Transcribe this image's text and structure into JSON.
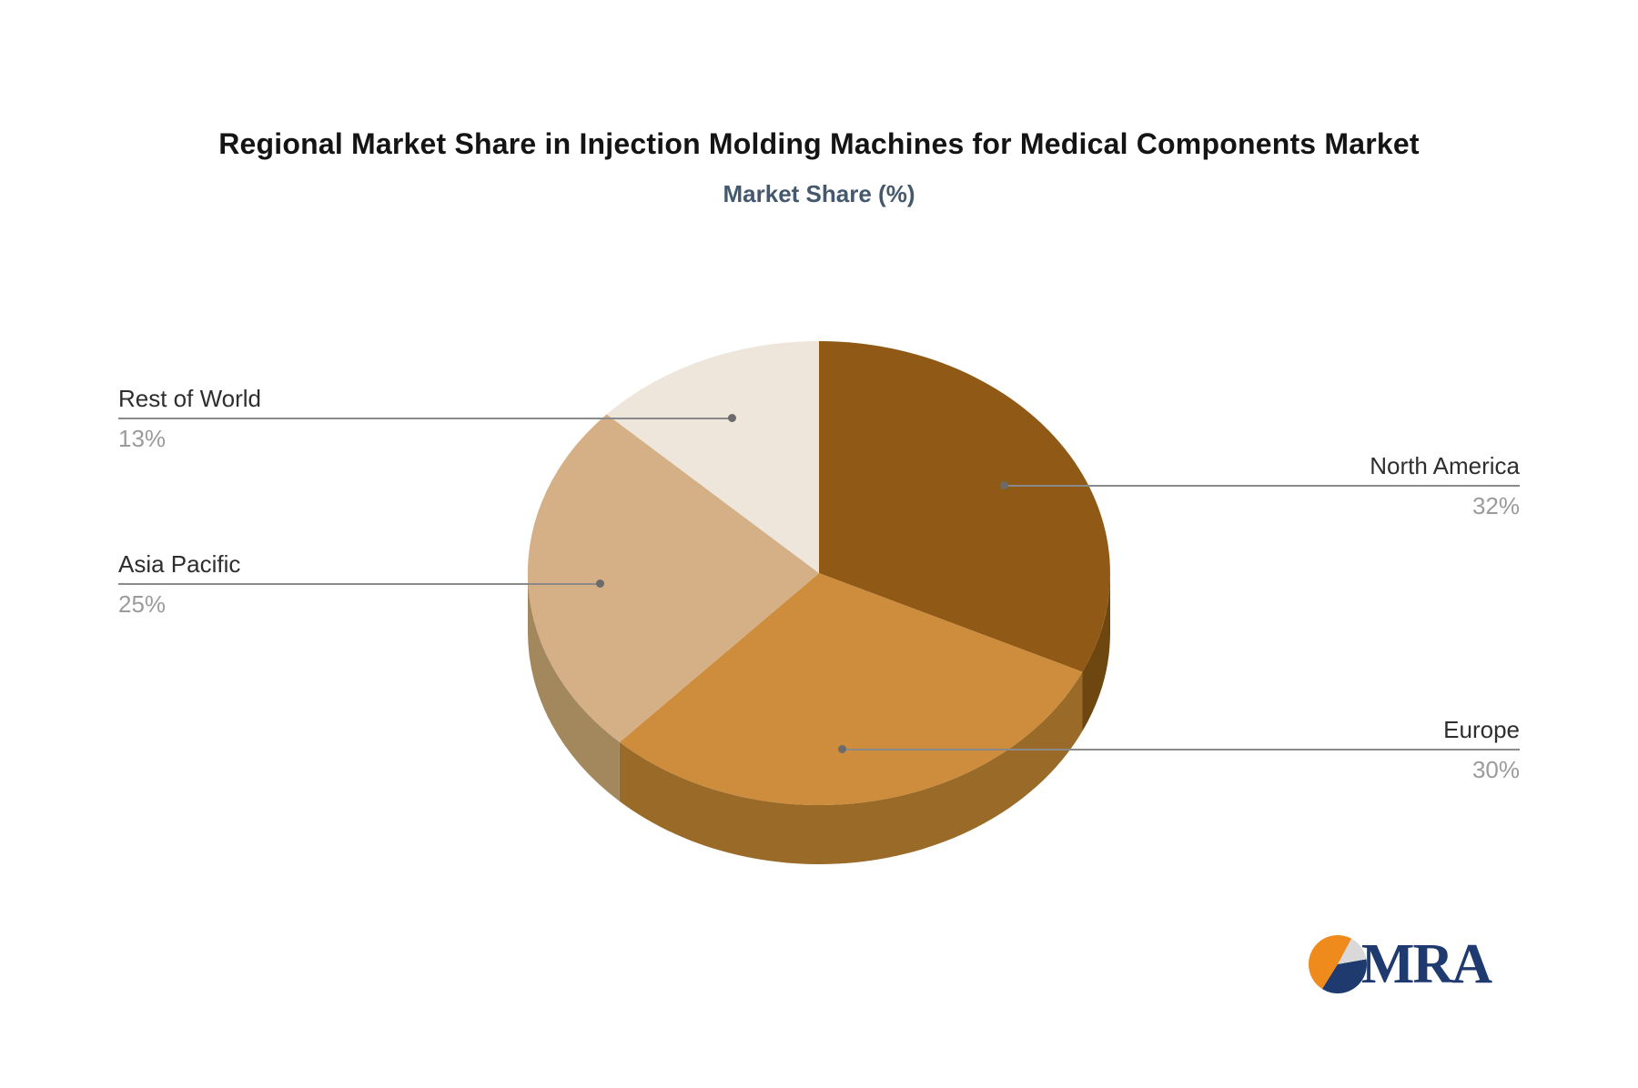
{
  "title": "Regional Market Share in Injection Molding Machines for Medical Components Market",
  "subtitle": "Market Share (%)",
  "logo": {
    "text": "MRA"
  },
  "chart_data": {
    "type": "pie",
    "title": "Regional Market Share in Injection Molding Machines for Medical Components Market",
    "subtitle": "Market Share (%)",
    "unit": "%",
    "style": "3d-pie",
    "start_angle": "12-oclock",
    "direction": "clockwise",
    "legend_position": "none",
    "slices": [
      {
        "label": "North America",
        "value": 32,
        "display": "32%",
        "color": "#905a16",
        "rim_color": "#6e4610",
        "label_side": "right"
      },
      {
        "label": "Europe",
        "value": 30,
        "display": "30%",
        "color": "#ce8c3d",
        "rim_color": "#9a6b28",
        "label_side": "right"
      },
      {
        "label": "Asia Pacific",
        "value": 25,
        "display": "25%",
        "color": "#d5b087",
        "rim_color": "#a3885e",
        "label_side": "left"
      },
      {
        "label": "Rest of World",
        "value": 13,
        "display": "13%",
        "color": "#eee5db",
        "rim_color": "#c9bcac",
        "label_side": "left"
      }
    ],
    "colors": {
      "leader_line": "#8a8a8a",
      "leader_dot": "#6b6b6b",
      "label_text": "#2e2e2e",
      "value_text": "#9b9b9b",
      "title_text": "#141414",
      "subtitle_text": "#44586e"
    }
  }
}
